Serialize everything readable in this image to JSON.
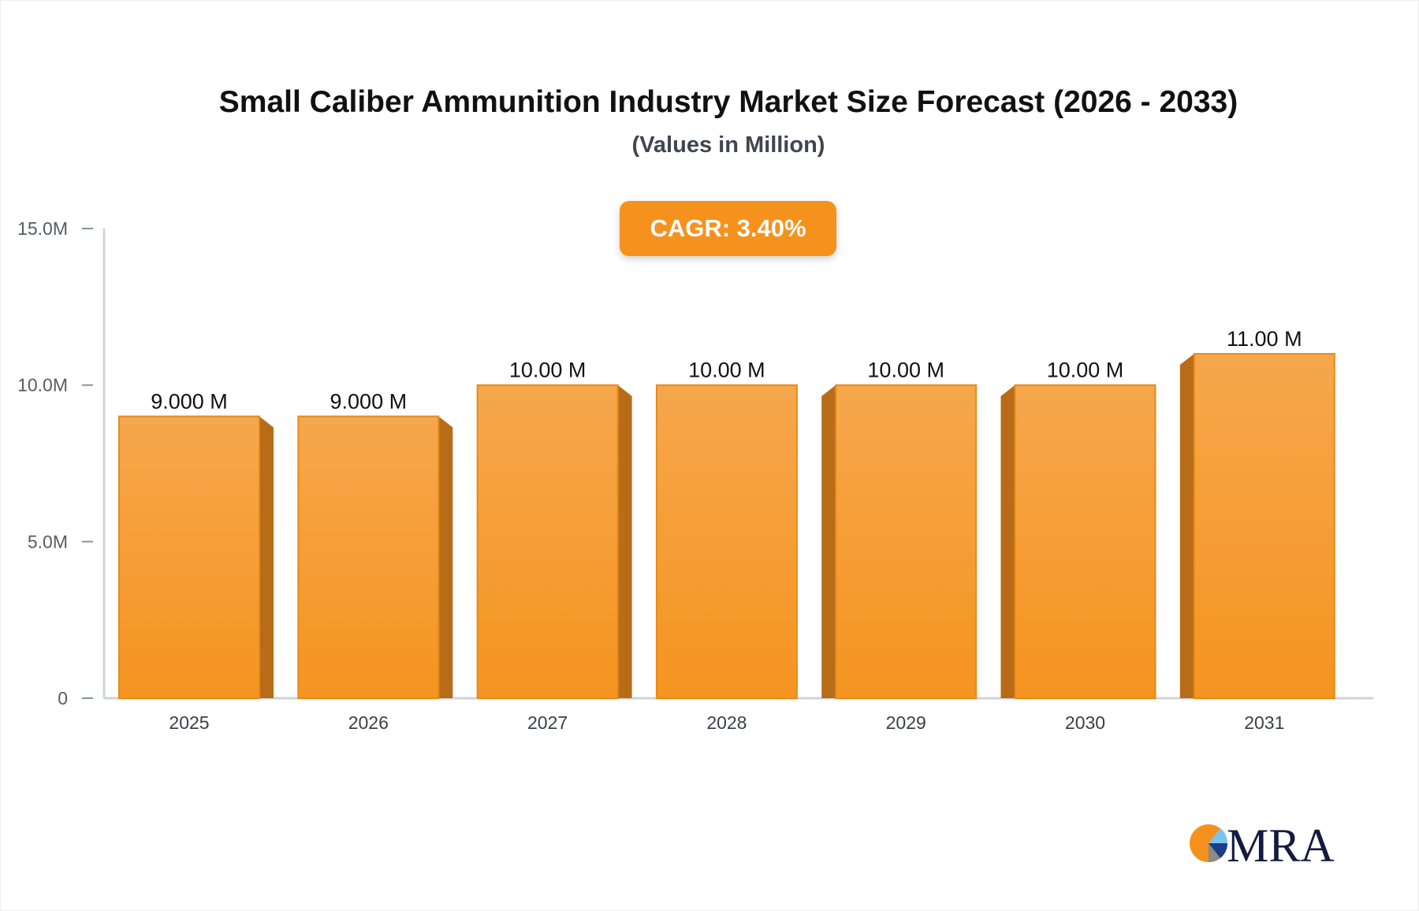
{
  "chart_data": {
    "type": "bar",
    "title": "Small Caliber Ammunition Industry Market Size Forecast (2026 - 2033)",
    "subtitle": "(Values in Million)",
    "categories": [
      "2025",
      "2026",
      "2027",
      "2028",
      "2029",
      "2030",
      "2031"
    ],
    "values": [
      9,
      9,
      10,
      10,
      10,
      10,
      11
    ],
    "data_labels": [
      "9.000 M",
      "9.000 M",
      "10.00 M",
      "10.00 M",
      "10.00 M",
      "10.00 M",
      "11.00 M"
    ],
    "yticks": [
      0,
      5,
      10,
      15
    ],
    "ytick_labels": [
      "0",
      "5.0M",
      "10.0M",
      "15.0M"
    ],
    "ylim": [
      0,
      15
    ],
    "xlabel": "",
    "ylabel": "",
    "grid": false,
    "bar_color": "#f5a040",
    "bar_side_color": "#b86c18",
    "annotation": "CAGR: 3.40%"
  },
  "logo": {
    "text": "MRA",
    "colors": [
      "#f5921e",
      "#7cc4ee",
      "#1b3d8a",
      "#8a8a8a",
      "#141a40"
    ]
  }
}
